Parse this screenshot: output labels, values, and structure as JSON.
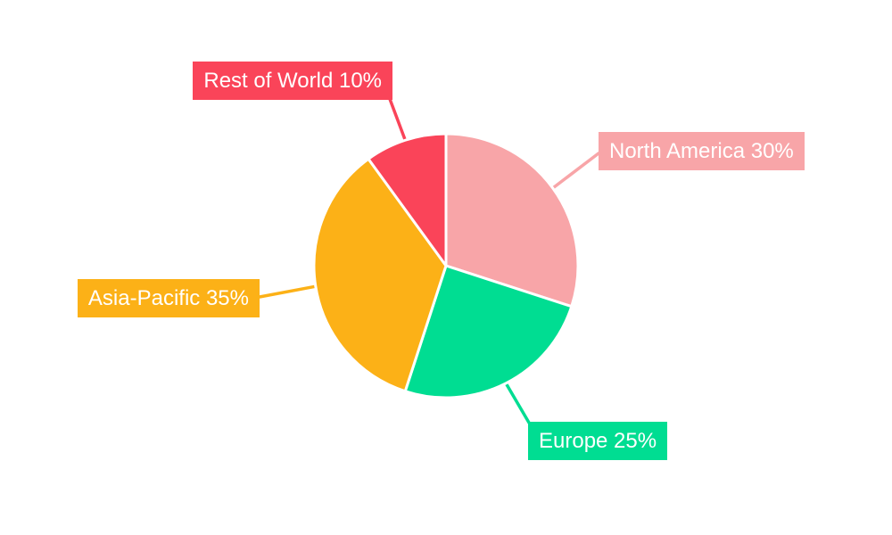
{
  "page": {
    "background": "#FFFFFF"
  },
  "chart_data": {
    "type": "pie",
    "title": "",
    "unit": "%",
    "start_angle": "12-oclock",
    "direction": "clockwise",
    "legend": false,
    "background": "#FFFFFF",
    "label_text_color": "#FFFFFF",
    "slice_border_color": "#FFFFFF",
    "categories": [
      "North America",
      "Europe",
      "Asia-Pacific",
      "Rest of World"
    ],
    "values": [
      30,
      25,
      35,
      10
    ],
    "slices": [
      {
        "name": "North America",
        "value": 30,
        "label": "North America 30%",
        "color": "#F8A5A8"
      },
      {
        "name": "Europe",
        "value": 25,
        "label": "Europe 25%",
        "color": "#00DD92"
      },
      {
        "name": "Asia-Pacific",
        "value": 35,
        "label": "Asia-Pacific 35%",
        "color": "#FCB117"
      },
      {
        "name": "Rest of World",
        "value": 10,
        "label": "Rest of World 10%",
        "color": "#FA4459"
      }
    ]
  }
}
